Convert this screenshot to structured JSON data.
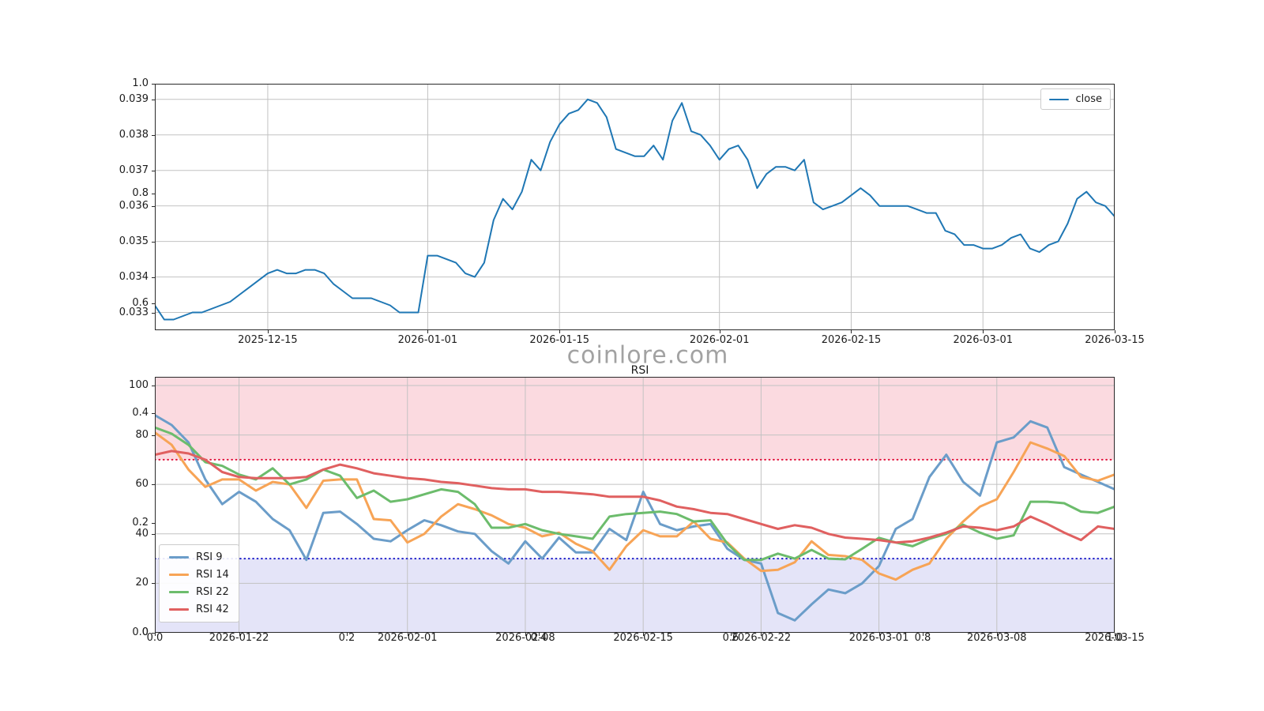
{
  "watermark": "coinlore.com",
  "figure_axis": {
    "x_tick_labels": [
      "0.0",
      "0.2",
      "0.4",
      "0.6",
      "0.8",
      "1.0"
    ],
    "y_tick_labels": [
      "1.0",
      "0.8",
      "0.6",
      "0.4",
      "0.2",
      "0.0"
    ]
  },
  "chart_data": [
    {
      "type": "line",
      "title": "",
      "x_start_date": "2025-12-03",
      "x_end_date": "2026-03-15",
      "x_tick_labels": [
        "2025-12-15",
        "2026-01-01",
        "2026-01-15",
        "2026-02-01",
        "2026-02-15",
        "2026-03-01",
        "2026-03-15"
      ],
      "x_tick_indices": [
        12,
        29,
        43,
        60,
        74,
        88,
        102
      ],
      "y_tick_labels": [
        "0.033",
        "0.034",
        "0.035",
        "0.036",
        "0.037",
        "0.038",
        "0.039"
      ],
      "y_tick_values": [
        0.033,
        0.034,
        0.035,
        0.036,
        0.037,
        0.038,
        0.039
      ],
      "ylim": [
        0.0325,
        0.03944
      ],
      "grid": true,
      "legend_position": "upper right",
      "series": [
        {
          "name": "close",
          "color": "#1f77b4",
          "width": 2,
          "values": [
            0.0332,
            0.0328,
            0.0328,
            0.0329,
            0.033,
            0.033,
            0.0331,
            0.0332,
            0.0333,
            0.0335,
            0.0337,
            0.0339,
            0.0341,
            0.0342,
            0.0341,
            0.0341,
            0.0342,
            0.0342,
            0.0341,
            0.0338,
            0.0336,
            0.0334,
            0.0334,
            0.0334,
            0.0333,
            0.0332,
            0.033,
            0.033,
            0.033,
            0.0346,
            0.0346,
            0.0345,
            0.0344,
            0.0341,
            0.034,
            0.0344,
            0.0356,
            0.0362,
            0.0359,
            0.0364,
            0.0373,
            0.037,
            0.0378,
            0.0383,
            0.0386,
            0.0387,
            0.039,
            0.0389,
            0.0385,
            0.0376,
            0.0375,
            0.0374,
            0.0374,
            0.0377,
            0.0373,
            0.0384,
            0.0389,
            0.0381,
            0.038,
            0.0377,
            0.0373,
            0.0376,
            0.0377,
            0.0373,
            0.0365,
            0.0369,
            0.0371,
            0.0371,
            0.037,
            0.0373,
            0.0361,
            0.0359,
            0.036,
            0.0361,
            0.0363,
            0.0365,
            0.0363,
            0.036,
            0.036,
            0.036,
            0.036,
            0.0359,
            0.0358,
            0.0358,
            0.0353,
            0.0352,
            0.0349,
            0.0349,
            0.0348,
            0.0348,
            0.0349,
            0.0351,
            0.0352,
            0.0348,
            0.0347,
            0.0349,
            0.035,
            0.0355,
            0.0362,
            0.0364,
            0.0361,
            0.036,
            0.0357
          ]
        }
      ]
    },
    {
      "type": "line",
      "title": "RSI",
      "x_start_date": "2026-01-17",
      "x_end_date": "2026-03-15",
      "x_tick_labels": [
        "2026-01-22",
        "2026-02-01",
        "2026-02-08",
        "2026-02-15",
        "2026-02-22",
        "2026-03-01",
        "2026-03-08",
        "2026-03-15"
      ],
      "x_tick_indices": [
        5,
        15,
        22,
        29,
        36,
        43,
        50,
        57
      ],
      "y_tick_labels": [
        "0",
        "20",
        "40",
        "60",
        "80",
        "100"
      ],
      "y_tick_values": [
        0,
        20,
        40,
        60,
        80,
        100
      ],
      "ylim": [
        0,
        103.5
      ],
      "grid": true,
      "legend_position": "lower left",
      "overbought_level": 70,
      "oversold_level": 30,
      "bands": [
        {
          "from": 70,
          "to": 103.5,
          "color": "#fbdae0"
        },
        {
          "from": 0,
          "to": 30,
          "color": "#e4e4f8"
        }
      ],
      "hlines": [
        {
          "y": 70,
          "color": "#e0113a",
          "style": "dotted"
        },
        {
          "y": 30,
          "color": "#1d1dc8",
          "style": "dotted"
        }
      ],
      "series": [
        {
          "name": "RSI 9",
          "color": "#6b9dc9",
          "width": 3,
          "values": [
            88,
            84,
            77,
            62,
            52,
            57,
            53,
            46,
            41.5,
            29.5,
            48.5,
            49,
            44,
            38,
            37,
            41.5,
            45.5,
            43.5,
            41,
            40,
            33,
            28,
            37,
            30,
            38.5,
            32.5,
            32.5,
            42,
            37.5,
            57,
            44,
            41.5,
            43,
            44,
            34,
            29.5,
            28,
            8,
            5,
            11.5,
            17.5,
            16,
            20,
            27,
            42,
            46,
            63,
            72,
            61,
            55.5,
            77,
            79,
            85.5,
            83,
            67,
            64,
            61,
            58
          ]
        },
        {
          "name": "RSI 14",
          "color": "#f7a456",
          "width": 3,
          "values": [
            81,
            76,
            66,
            59,
            62,
            62,
            57.5,
            61,
            60,
            50.5,
            61.5,
            62,
            62,
            46,
            45.5,
            36.5,
            40,
            47,
            52,
            50,
            47.5,
            44,
            42.5,
            39,
            40.5,
            36,
            33,
            25.5,
            35,
            41.5,
            39,
            39,
            45,
            38,
            36.5,
            30,
            25,
            25.5,
            28.5,
            37,
            31.5,
            31,
            29.5,
            24,
            21.5,
            25.5,
            28,
            38,
            45,
            51,
            54,
            65,
            77,
            74.5,
            71.5,
            63,
            61.5,
            64
          ]
        },
        {
          "name": "RSI 22",
          "color": "#6cbc6c",
          "width": 3,
          "values": [
            83,
            80.5,
            76,
            69,
            67.5,
            64,
            62,
            66.5,
            60,
            62,
            66,
            63.5,
            54.5,
            57.5,
            53,
            54,
            56,
            58,
            57,
            52,
            42.5,
            42.5,
            44,
            41.5,
            40,
            39,
            38,
            47,
            48,
            48.5,
            49,
            48,
            45,
            45.5,
            36,
            29.5,
            29.5,
            32,
            30,
            33.5,
            30,
            29.7,
            34,
            38.4,
            36.5,
            35,
            38,
            40,
            43.7,
            40.5,
            38,
            39.4,
            53,
            53,
            52.4,
            49,
            48.5,
            51
          ]
        },
        {
          "name": "RSI 42",
          "color": "#e06060",
          "width": 3,
          "values": [
            72,
            73.5,
            72.5,
            70,
            65,
            63,
            62.5,
            62.5,
            62.5,
            63,
            66,
            68,
            66.5,
            64.5,
            63.5,
            62.5,
            62,
            61,
            60.5,
            59.5,
            58.5,
            58,
            58,
            57,
            57,
            56.5,
            56,
            55,
            55,
            55,
            53.5,
            51,
            50,
            48.5,
            48,
            46,
            44,
            42,
            43.5,
            42.5,
            40,
            38.5,
            38,
            37.5,
            36.5,
            37,
            38.5,
            40.5,
            43,
            42.5,
            41.5,
            43,
            47,
            44,
            40.5,
            37.5,
            43,
            42
          ]
        }
      ]
    }
  ]
}
